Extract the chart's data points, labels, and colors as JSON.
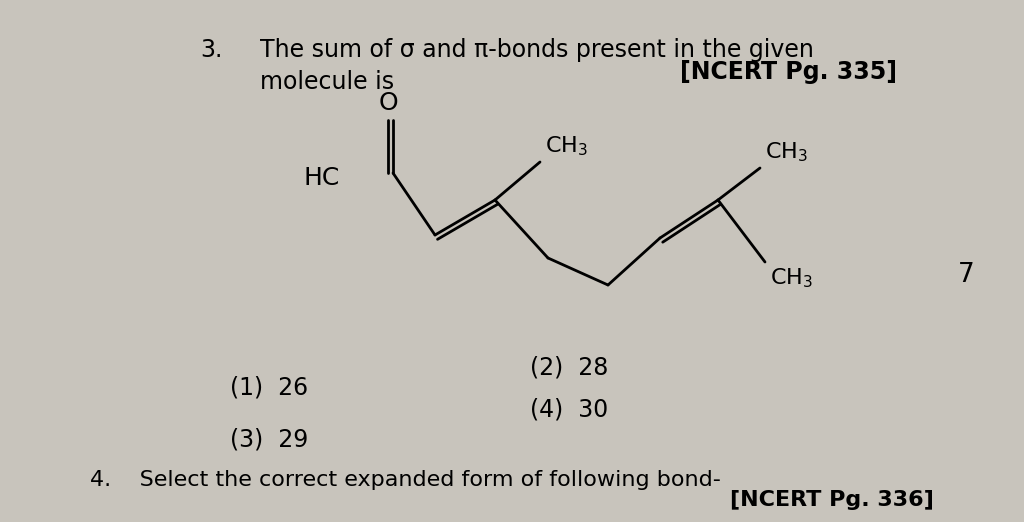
{
  "background_color": "#c8c4bc",
  "page_color": "#d8d4cc",
  "title_number": "3.",
  "question_line1": "The sum of σ and π-bonds present in the given",
  "question_line2": "molecule is",
  "ncert_ref": "[NCERT Pg. 335]",
  "options_left": [
    "(1)  26",
    "(3)  29"
  ],
  "options_right": [
    "(2)  28",
    "(4)  30"
  ],
  "bottom_text": "4.    Select the correct expanded form of following bond-",
  "bottom_ref": "[NCERT Pg. 336]",
  "page_number": "7",
  "lw": 2.0
}
